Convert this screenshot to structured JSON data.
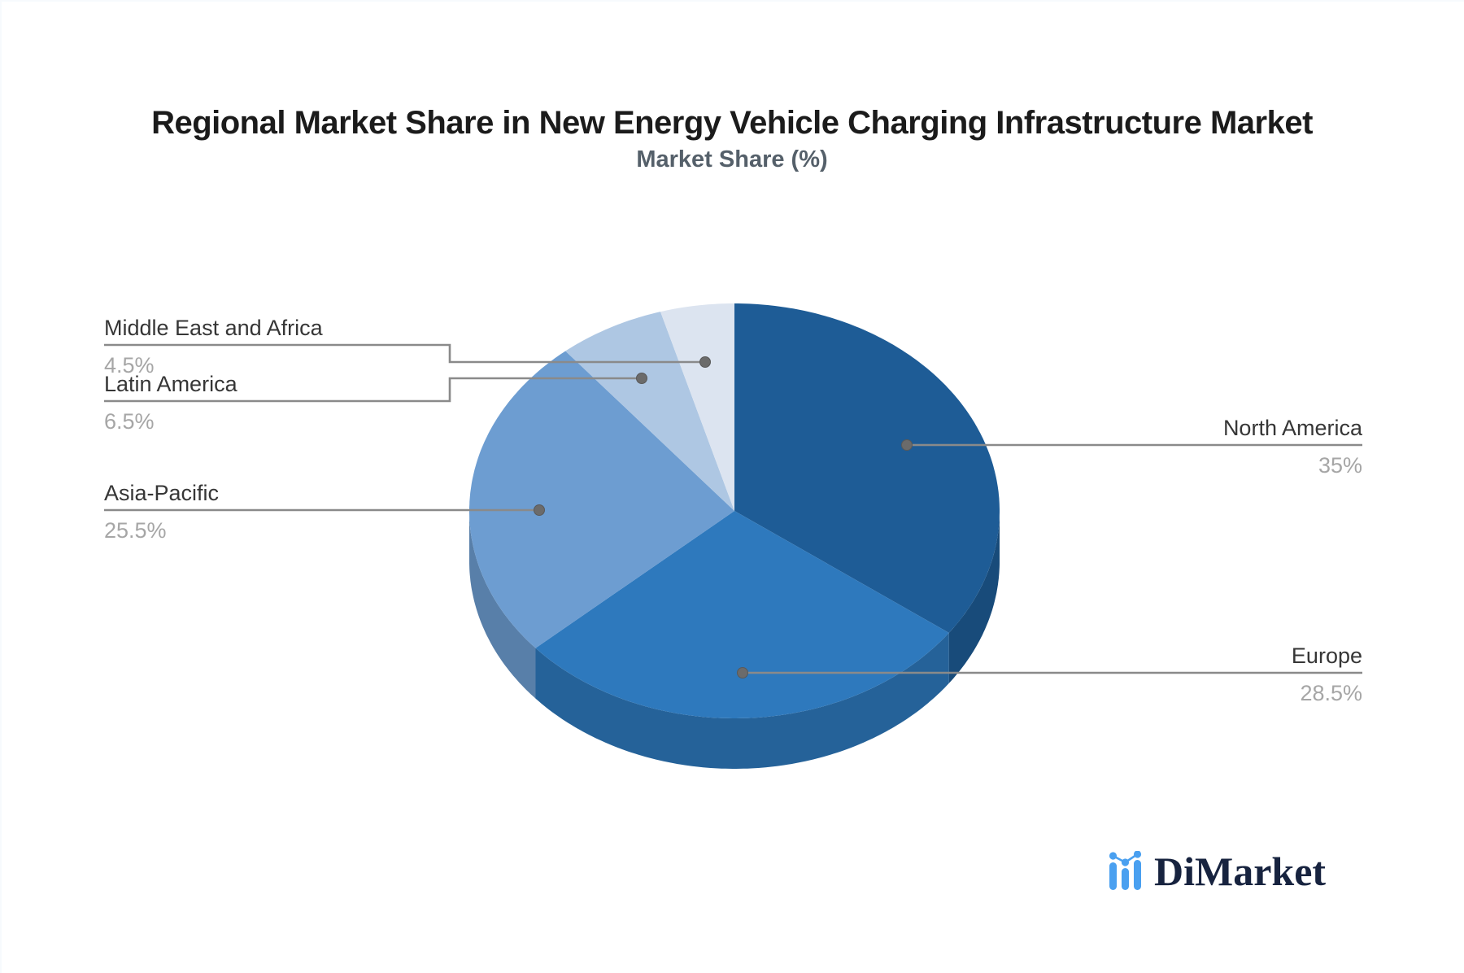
{
  "title": "Regional Market Share in New Energy Vehicle Charging Infrastructure Market",
  "subtitle": "Market Share (%)",
  "logo": {
    "text": "DiMarket",
    "text_color": "#17233f",
    "icon": "bar-chart-icon",
    "icon_color": "#4aa0f0"
  },
  "colors": {
    "leader_line": "#8a8a8a",
    "leader_dot": "#6b6b6b",
    "label_text": "#363636",
    "value_text": "#a6a6a6"
  },
  "chart_data": {
    "type": "pie",
    "style": "3d",
    "title": "Regional Market Share in New Energy Vehicle Charging Infrastructure Market",
    "subtitle": "Market Share (%)",
    "unit": "%",
    "start_angle": "top",
    "direction": "clockwise",
    "legend_position": "callout-labels",
    "slices": [
      {
        "label": "North America",
        "value": 35,
        "value_label": "35%",
        "color": "#1e5c96"
      },
      {
        "label": "Europe",
        "value": 28.5,
        "value_label": "28.5%",
        "color": "#2e79bd"
      },
      {
        "label": "Asia-Pacific",
        "value": 25.5,
        "value_label": "25.5%",
        "color": "#6d9dd1"
      },
      {
        "label": "Latin America",
        "value": 6.5,
        "value_label": "6.5%",
        "color": "#aec7e3"
      },
      {
        "label": "Middle East and Africa",
        "value": 4.5,
        "value_label": "4.5%",
        "color": "#dce4f0"
      }
    ]
  }
}
